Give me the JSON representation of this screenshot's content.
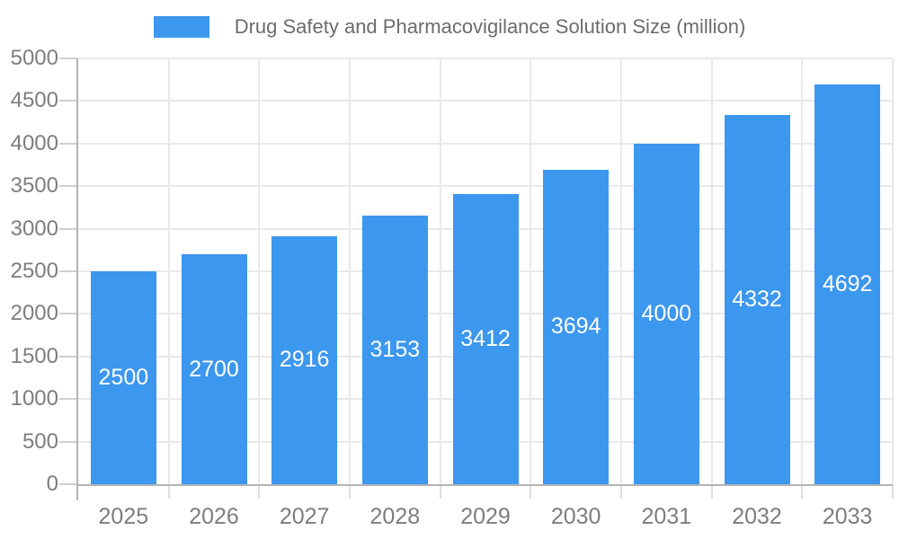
{
  "chart_data": {
    "type": "bar",
    "title": "Drug Safety and Pharmacovigilance Solution Size (million)",
    "categories": [
      "2025",
      "2026",
      "2027",
      "2028",
      "2029",
      "2030",
      "2031",
      "2032",
      "2033"
    ],
    "values": [
      2500,
      2700,
      2916,
      3153,
      3412,
      3694,
      4000,
      4332,
      4692
    ],
    "xlabel": "",
    "ylabel": "",
    "ylim": [
      0,
      5000
    ],
    "ytick_step": 500,
    "yticks": [
      0,
      500,
      1000,
      1500,
      2000,
      2500,
      3000,
      3500,
      4000,
      4500,
      5000
    ],
    "grid": true,
    "legend_position": "top",
    "value_labels": "inside-center",
    "bar_color": "#3C97EE",
    "value_label_color": "#FFFFFF"
  },
  "colors": {
    "background": "#FFFFFF",
    "axis_line": "#B3B3B3",
    "gridline": "#E9E9E9",
    "y_tick": "#CFCFCF",
    "x_tick": "#DFDFDF",
    "axis_text": "#7D7D7D",
    "title_text": "#6B6B6B"
  }
}
